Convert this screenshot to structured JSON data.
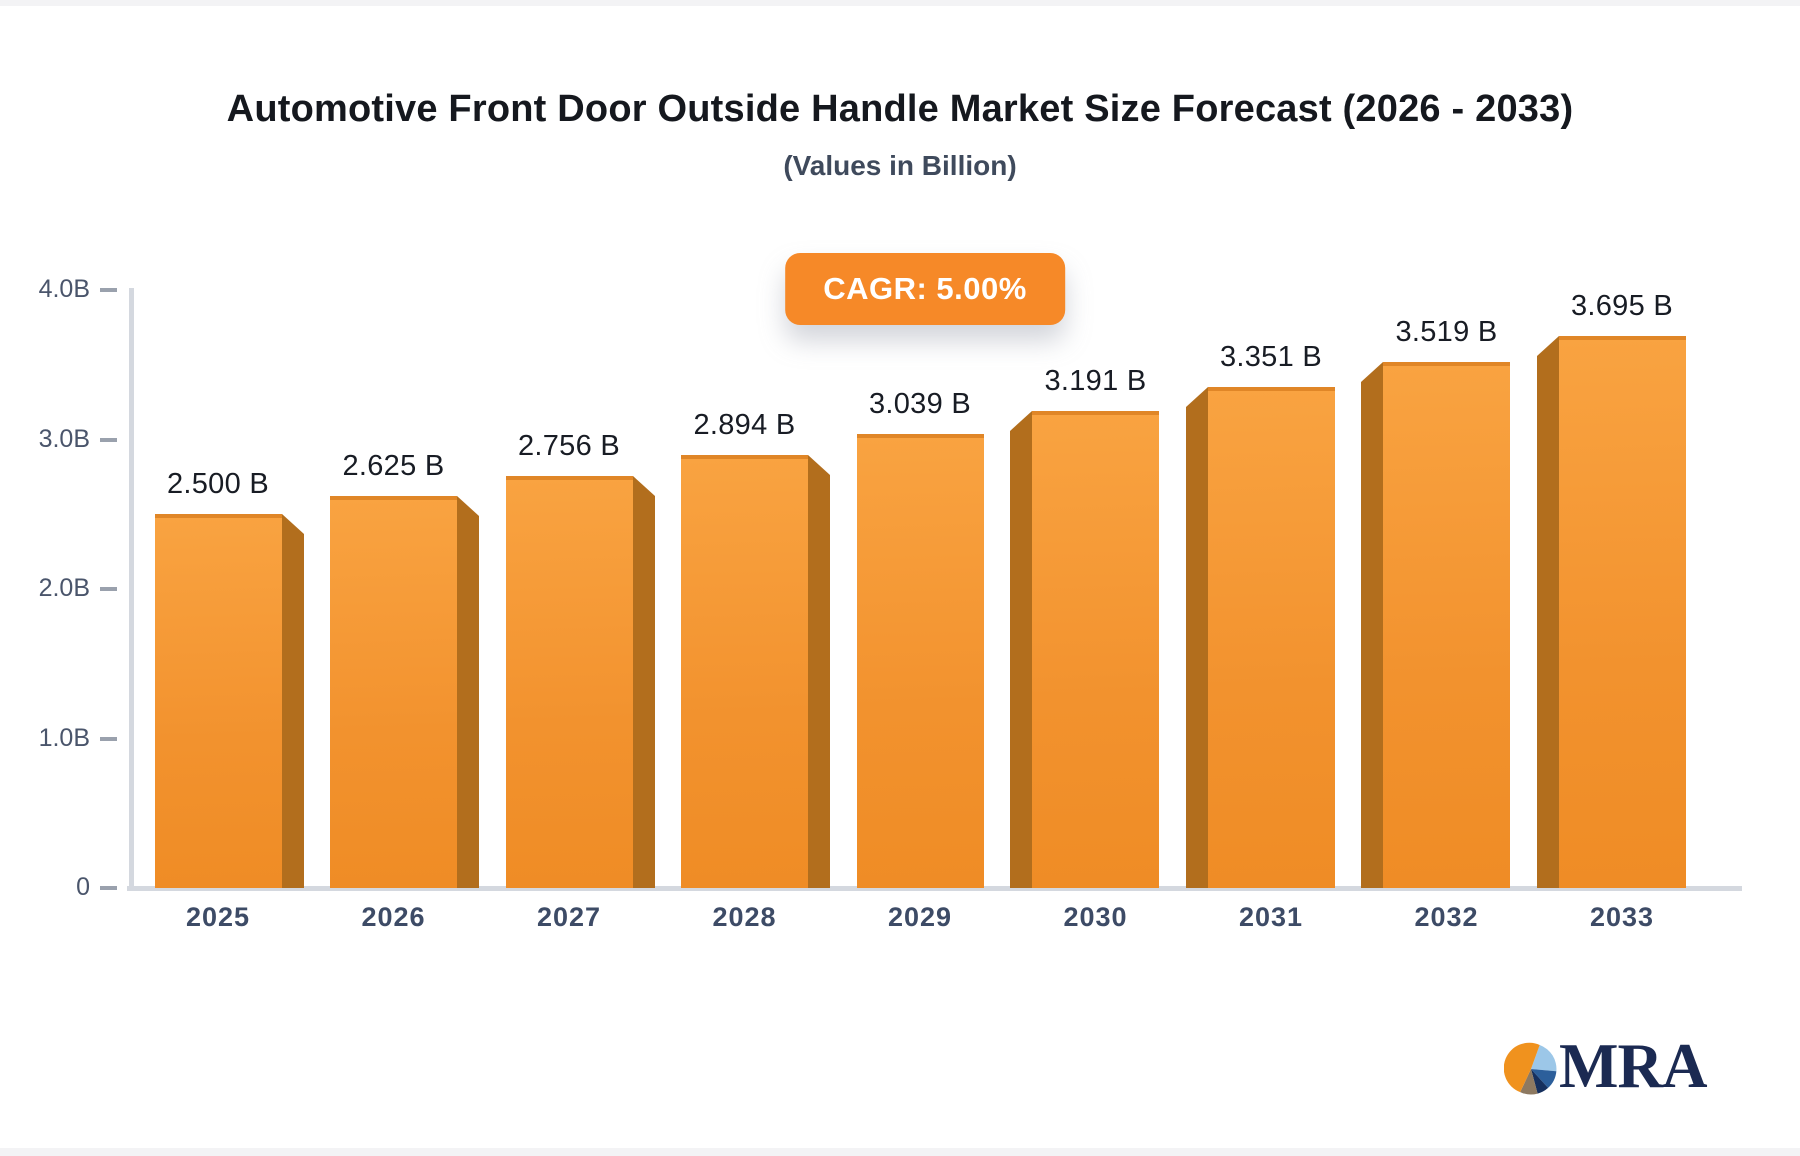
{
  "header": {
    "title": "Automotive Front Door Outside Handle Market Size Forecast (2026 - 2033)",
    "subtitle": "(Values in Billion)"
  },
  "badge": {
    "label": "CAGR: 5.00%"
  },
  "chart_data": {
    "type": "bar",
    "title": "Automotive Front Door Outside Handle Market Size Forecast (2026 - 2033)",
    "subtitle": "(Values in Billion)",
    "cagr_annotation": "CAGR: 5.00%",
    "categories": [
      "2025",
      "2026",
      "2027",
      "2028",
      "2029",
      "2030",
      "2031",
      "2032",
      "2033"
    ],
    "values": [
      2.5,
      2.625,
      2.756,
      2.894,
      3.039,
      3.191,
      3.351,
      3.519,
      3.695
    ],
    "value_labels": [
      "2.500 B",
      "2.625 B",
      "2.756 B",
      "2.894 B",
      "3.039 B",
      "3.191 B",
      "3.351 B",
      "3.519 B",
      "3.695 B"
    ],
    "xlabel": "",
    "ylabel": "",
    "ylim": [
      0,
      4
    ],
    "y_ticks": [
      {
        "label": "0",
        "value": 0
      },
      {
        "label": "1.0B",
        "value": 1
      },
      {
        "label": "2.0B",
        "value": 2
      },
      {
        "label": "3.0B",
        "value": 3
      },
      {
        "label": "4.0B",
        "value": 4
      }
    ],
    "grid": false,
    "legend": false,
    "style": "3d-extruded bars, center perspective (side bevel faces outward from middle bar)"
  },
  "colors": {
    "bar_face": "#F5962F",
    "bar_face_light": "#F9A341",
    "bar_side": "#B26E1D",
    "badge_background": "#F68928",
    "axis": "#D4D8DF",
    "title_text": "#15181E",
    "logo_navy": "#1B2A52"
  },
  "logo": {
    "text": "MRA",
    "pie_slices": [
      "orange",
      "light-blue",
      "blue",
      "navy",
      "brown-gray"
    ]
  }
}
